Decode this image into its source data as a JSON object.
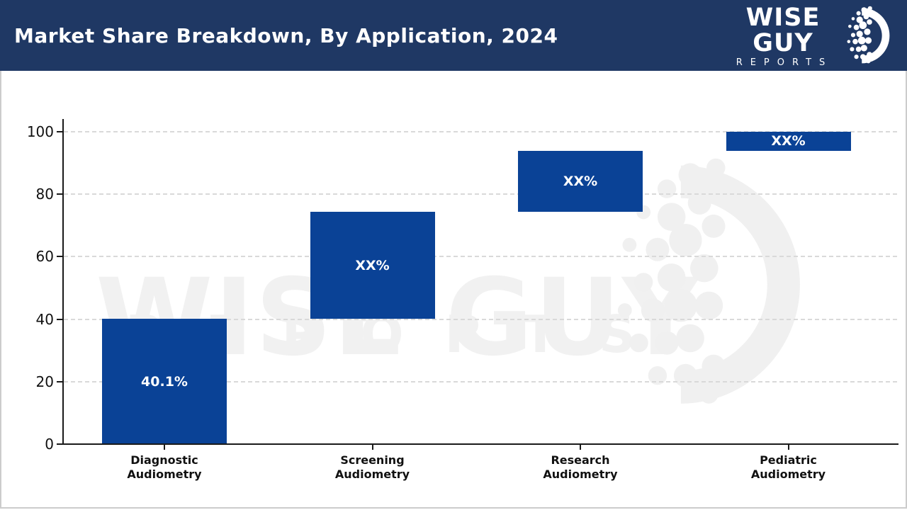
{
  "header": {
    "title": "Market Share Breakdown, By Application, 2024",
    "brand": {
      "line1": "WISE GUY",
      "line2": "REPORTS"
    },
    "background_color": "#1f3864"
  },
  "watermark": {
    "line1": "WISE GUY",
    "line2": "REPORTS"
  },
  "chart_data": {
    "type": "bar",
    "variant": "floating-waterfall",
    "title": "Market Share Breakdown, By Application, 2024",
    "xlabel": "",
    "ylabel": "",
    "ylim": [
      0,
      100
    ],
    "yticks": [
      0,
      20,
      40,
      60,
      80,
      100
    ],
    "grid": "horizontal-dashed",
    "legend": "none",
    "bar_color": "#0a4296",
    "bars": [
      {
        "category": "Diagnostic Audiometry",
        "start": 0,
        "end": 40.1,
        "label": "40.1%"
      },
      {
        "category": "Screening Audiometry",
        "start": 40.1,
        "end": 74.4,
        "label": "XX%"
      },
      {
        "category": "Research Audiometry",
        "start": 74.4,
        "end": 93.9,
        "label": "XX%"
      },
      {
        "category": "Pediatric Audiometry",
        "start": 93.9,
        "end": 100,
        "label": "XX%"
      }
    ]
  }
}
